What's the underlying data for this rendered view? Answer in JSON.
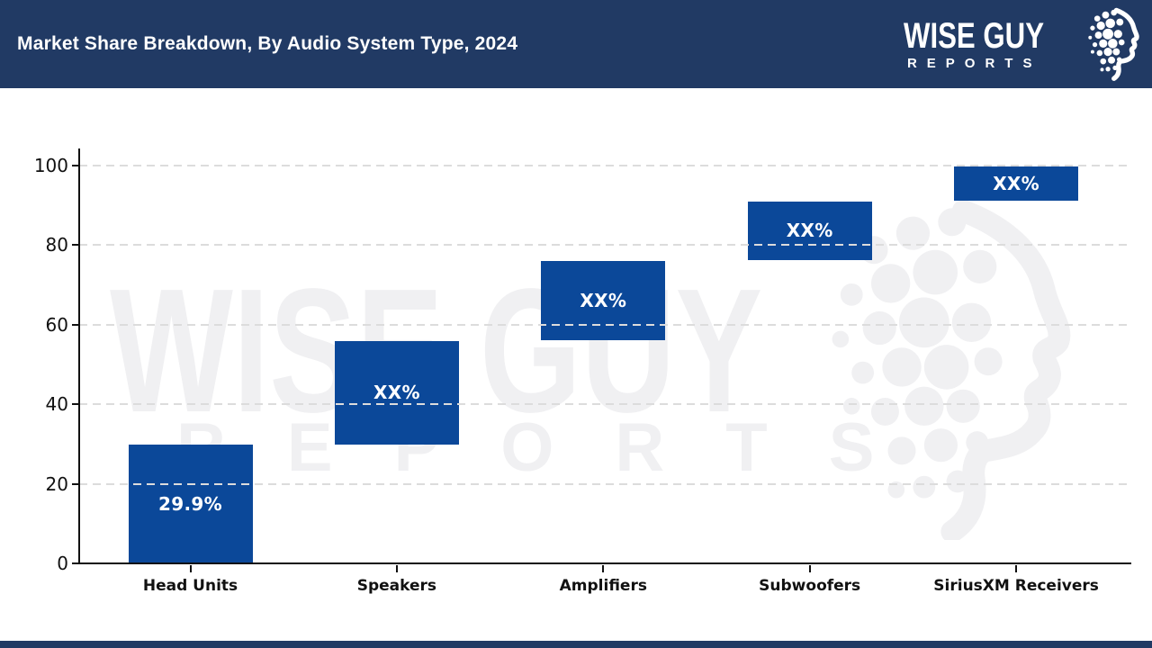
{
  "header": {
    "title": "Market Share Breakdown, By Audio System Type, 2024",
    "logo": {
      "line1": "WISE GUY",
      "line2": "REPORTS"
    }
  },
  "watermark": {
    "line1": "WISE GUY",
    "line2": "REPORTS"
  },
  "colors": {
    "header_bg": "#213a64",
    "footer_bg": "#213a64",
    "bar": "#0b4899",
    "bar_label": "#ffffff",
    "grid": "#dcdcdc",
    "axis": "#111111",
    "watermark": "#f0f0f2"
  },
  "chart_data": {
    "type": "bar",
    "subtype": "waterfall",
    "title": "Market Share Breakdown, By Audio System Type, 2024",
    "categories": [
      "Head Units",
      "Speakers",
      "Amplifiers",
      "Subwoofers",
      "SiriusXM Receivers"
    ],
    "segments": [
      {
        "category": "Head Units",
        "start": 0,
        "end": 29.9,
        "label": "29.9%"
      },
      {
        "category": "Speakers",
        "start": 29.9,
        "end": 55.9,
        "label": "XX%"
      },
      {
        "category": "Amplifiers",
        "start": 56.1,
        "end": 76.1,
        "label": "XX%"
      },
      {
        "category": "Subwoofers",
        "start": 76.3,
        "end": 91.0,
        "label": "XX%"
      },
      {
        "category": "SiriusXM Receivers",
        "start": 91.2,
        "end": 99.8,
        "label": "XX%"
      }
    ],
    "yticks": [
      0,
      20,
      40,
      60,
      80,
      100
    ],
    "ylim": [
      0,
      104
    ],
    "xlabel": "",
    "ylabel": "",
    "grid": "horizontal dashed",
    "legend": "none"
  }
}
